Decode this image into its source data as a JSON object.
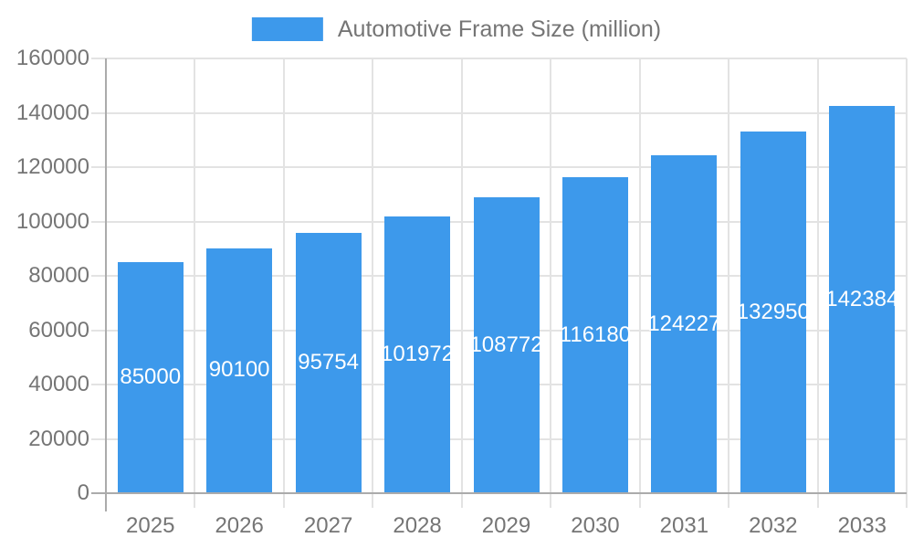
{
  "chart_data": {
    "type": "bar",
    "title": "Automotive Frame Size (million)",
    "categories": [
      "2025",
      "2026",
      "2027",
      "2028",
      "2029",
      "2030",
      "2031",
      "2032",
      "2033"
    ],
    "values": [
      85000,
      90100,
      95754,
      101972,
      108772,
      116180,
      124227,
      132950,
      142384
    ],
    "xlabel": "",
    "ylabel": "",
    "ylim": [
      0,
      160000
    ],
    "ytick_step": 20000,
    "grid": true,
    "legend_position": "top-center",
    "bar_value_labels": [
      "85000",
      "90100",
      "95754",
      "101972",
      "108772",
      "116180",
      "124227",
      "132950",
      "142384"
    ],
    "y_tick_labels": [
      "0",
      "20000",
      "40000",
      "60000",
      "80000",
      "100000",
      "120000",
      "140000",
      "160000"
    ],
    "colors": {
      "bar": "#3D99EB",
      "axis_line": "#ABABAB",
      "gridline": "#E3E3E3",
      "tick_label": "#757575",
      "legend_text": "#757575",
      "bar_label": "#FFFFFF",
      "background": "#FFFFFF"
    }
  }
}
